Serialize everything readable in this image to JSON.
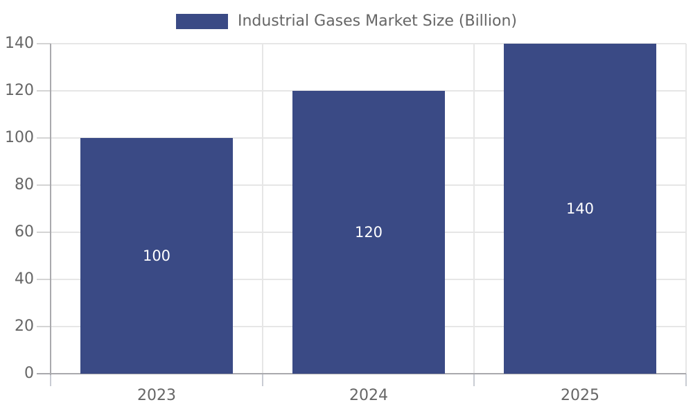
{
  "chart_data": {
    "type": "bar",
    "legend_label": "Industrial Gases Market Size (Billion)",
    "categories": [
      "2023",
      "2024",
      "2025"
    ],
    "series": [
      {
        "name": "Industrial Gases Market Size (Billion)",
        "values": [
          100,
          120,
          140
        ]
      }
    ],
    "value_labels": [
      "100",
      "120",
      "140"
    ],
    "ylim": [
      0,
      140
    ],
    "yticks": [
      0,
      20,
      40,
      60,
      80,
      100,
      120,
      140
    ],
    "grid": true,
    "legend_position": "top",
    "colors": {
      "bar": "#3a4a85",
      "grid": "#e6e6e6",
      "axis": "#a9a9ad",
      "tick": "#d4d4d4",
      "bottom_tick": "#c9ccd3",
      "text": "#666666",
      "value_text": "#ffffff"
    }
  }
}
